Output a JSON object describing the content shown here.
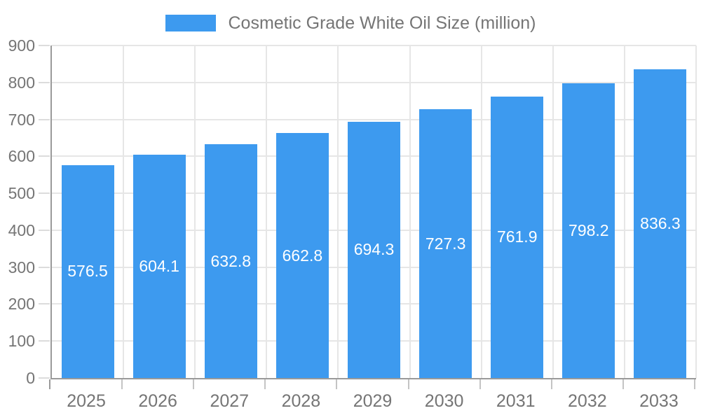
{
  "chart_data": {
    "type": "bar",
    "title": "Cosmetic Grade White Oil Size (million)",
    "categories": [
      "2025",
      "2026",
      "2027",
      "2028",
      "2029",
      "2030",
      "2031",
      "2032",
      "2033"
    ],
    "values": [
      576.5,
      604.1,
      632.8,
      662.8,
      694.3,
      727.3,
      761.9,
      798.2,
      836.3
    ],
    "value_labels": [
      "576.5",
      "604.1",
      "632.8",
      "662.8",
      "694.3",
      "727.3",
      "761.9",
      "798.2",
      "836.3"
    ],
    "xlabel": "",
    "ylabel": "",
    "ylim": [
      0,
      900
    ],
    "ytick_step": 100,
    "ytick_labels": [
      "0",
      "100",
      "200",
      "300",
      "400",
      "500",
      "600",
      "700",
      "800",
      "900"
    ],
    "grid": true,
    "legend_position": "top-center",
    "bar_label_position": "inside-center"
  },
  "colors": {
    "bar_fill": "#3d9aef",
    "bar_value_label": "#ffffff",
    "axis_line": "#9a9a9a",
    "gridline": "#e6e6e6",
    "tick": "#c4c4c4",
    "text": "#757575",
    "background": "#ffffff"
  }
}
